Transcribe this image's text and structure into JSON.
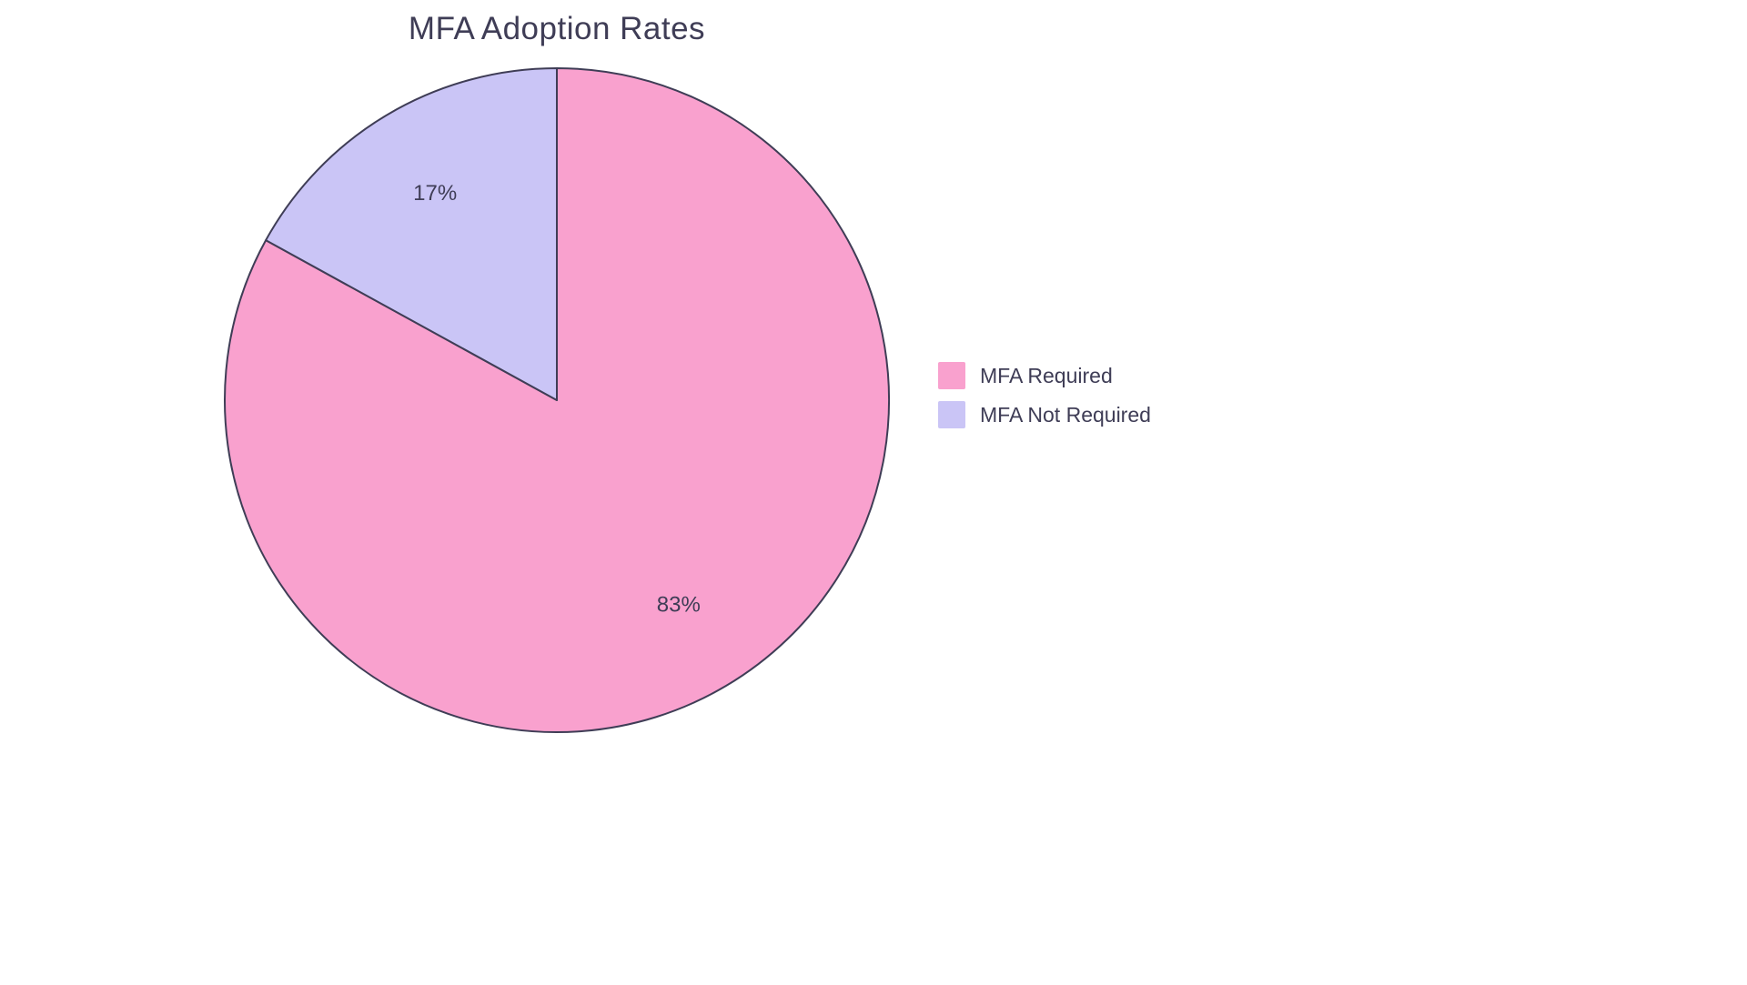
{
  "chart_data": {
    "type": "pie",
    "title": "MFA Adoption Rates",
    "legend_position": "right",
    "start_angle_deg": -90,
    "direction": "clockwise",
    "background": "#FFFFFF",
    "stroke_color": "#3F3D56",
    "stroke_width": 2,
    "text_color": "#3F3D56",
    "slices": [
      {
        "label": "MFA Required",
        "value": 83,
        "percent_label": "83%",
        "color": "#F9A1CE"
      },
      {
        "label": "MFA Not Required",
        "value": 17,
        "percent_label": "17%",
        "color": "#CAC5F6"
      }
    ]
  }
}
